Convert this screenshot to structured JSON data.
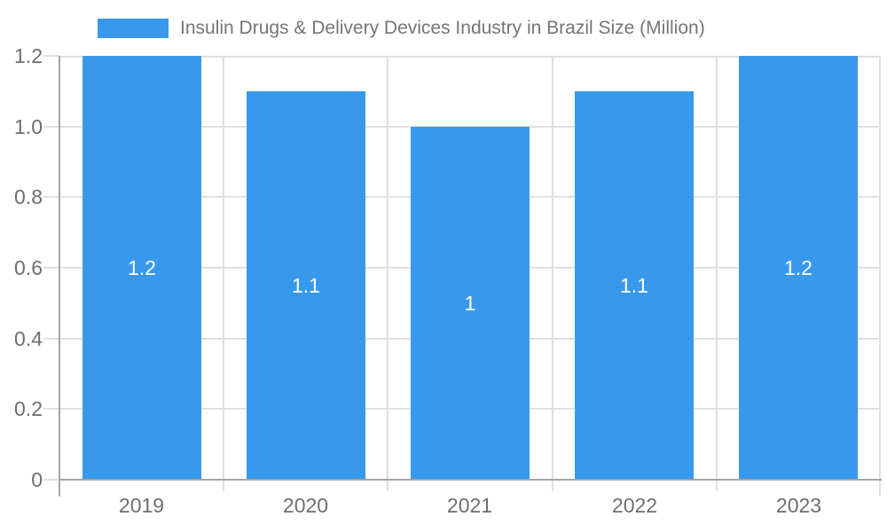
{
  "chart_data": {
    "type": "bar",
    "title": "Insulin Drugs & Delivery Devices Industry in Brazil Size (Million)",
    "categories": [
      "2019",
      "2020",
      "2021",
      "2022",
      "2023"
    ],
    "series": [
      {
        "name": "Insulin Drugs & Delivery Devices Industry in Brazil Size (Million)",
        "values": [
          1.2,
          1.1,
          1,
          1.1,
          1.2
        ],
        "labels": [
          "1.2",
          "1.1",
          "1",
          "1.1",
          "1.2"
        ]
      }
    ],
    "y_ticks": [
      "0",
      "0.2",
      "0.4",
      "0.6",
      "0.8",
      "1.0",
      "1.2"
    ],
    "ylim": [
      0,
      1.2
    ],
    "xlabel": "",
    "ylabel": "",
    "grid": true,
    "legend_position": "top",
    "colors": {
      "bar": "#3899EC",
      "grid": "#e0e0e0",
      "axis": "#a6a6a6",
      "axis_text": "#6e6e6e",
      "legend_text": "#757575",
      "bar_label": "#ffffff",
      "background": "#ffffff"
    }
  }
}
